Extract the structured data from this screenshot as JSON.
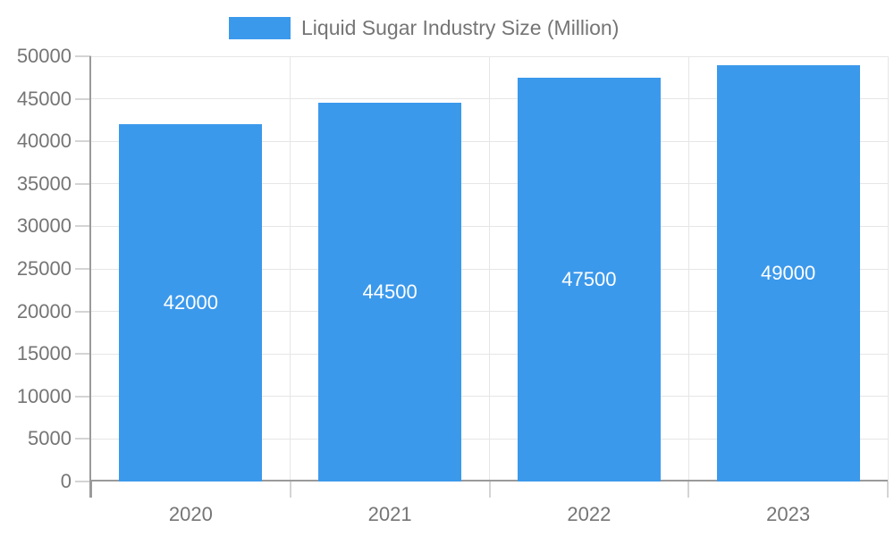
{
  "legend": {
    "label": "Liquid Sugar Industry Size (Million)"
  },
  "chart_data": {
    "type": "bar",
    "title": "Liquid Sugar Industry Size (Million)",
    "series": [
      {
        "name": "Liquid Sugar Industry Size (Million)",
        "values": [
          42000,
          44500,
          47500,
          49000
        ]
      }
    ],
    "categories": [
      "2020",
      "2021",
      "2022",
      "2023"
    ],
    "value_labels": [
      "42000",
      "44500",
      "47500",
      "49000"
    ],
    "xlabel": "",
    "ylabel": "",
    "ylim": [
      0,
      50000
    ],
    "ytick_step": 5000,
    "yticks": [
      0,
      5000,
      10000,
      15000,
      20000,
      25000,
      30000,
      35000,
      40000,
      45000,
      50000
    ],
    "grid": true,
    "legend_position": "top"
  },
  "colors": {
    "background": "#FFFFFF",
    "bar": "#3B99EC",
    "gridline": "#E6E6E6",
    "tick": "#D4D4D4",
    "axis_line": "#9A9A9A",
    "axis_text": "#757575",
    "value_text": "#FFFFFF"
  }
}
